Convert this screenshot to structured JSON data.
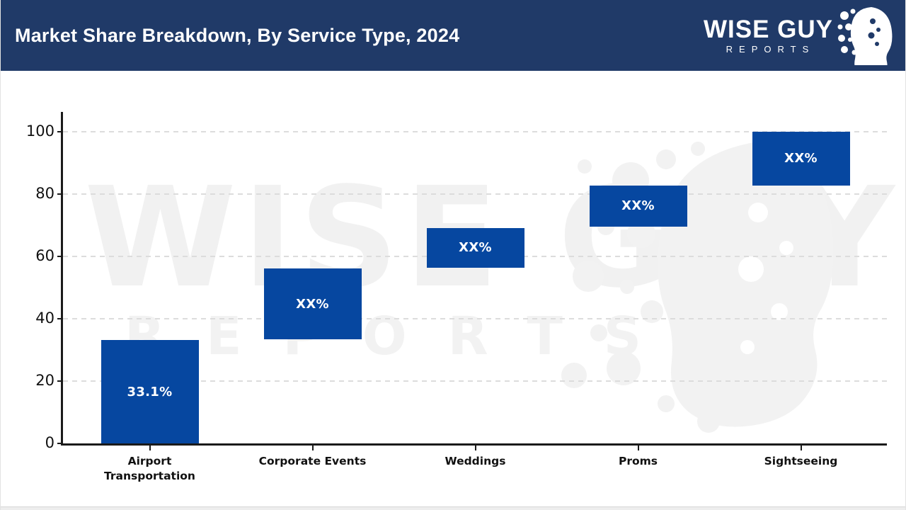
{
  "header": {
    "title": "Market Share Breakdown, By Service Type, 2024",
    "logo": {
      "wordmark": "WISE GUY",
      "sub": "REPORTS"
    }
  },
  "watermark": {
    "wordmark": "WISE GUY",
    "sub": "REPORTS"
  },
  "chart_data": {
    "type": "bar",
    "subtype": "waterfall",
    "title": "Market Share Breakdown, By Service Type, 2024",
    "categories": [
      "Airport\nTransportation",
      "Corporate Events",
      "Weddings",
      "Proms",
      "Sightseeing"
    ],
    "segments": [
      {
        "category": "Airport Transportation",
        "start": 0,
        "end": 33.1,
        "bar_label": "33.1%"
      },
      {
        "category": "Corporate Events",
        "start": 33.3,
        "end": 56.2,
        "bar_label": "XX%"
      },
      {
        "category": "Weddings",
        "start": 56.3,
        "end": 69.2,
        "bar_label": "XX%"
      },
      {
        "category": "Proms",
        "start": 69.6,
        "end": 82.7,
        "bar_label": "XX%"
      },
      {
        "category": "Sightseeing",
        "start": 82.8,
        "end": 100,
        "bar_label": "XX%"
      }
    ],
    "yticks": [
      0,
      20,
      40,
      60,
      80,
      100
    ],
    "ylim": [
      0,
      100
    ],
    "xlabel": "",
    "ylabel": "",
    "grid": "horizontal-dashed",
    "legend": "none",
    "bar_color": "#0647A0",
    "label_color": "#ffffff"
  },
  "colors": {
    "header_bg": "#203A68",
    "bar": "#0647A0",
    "axis": "#1a1a1a",
    "grid": "#dcdcdc",
    "watermark": "#f1f1f1"
  }
}
